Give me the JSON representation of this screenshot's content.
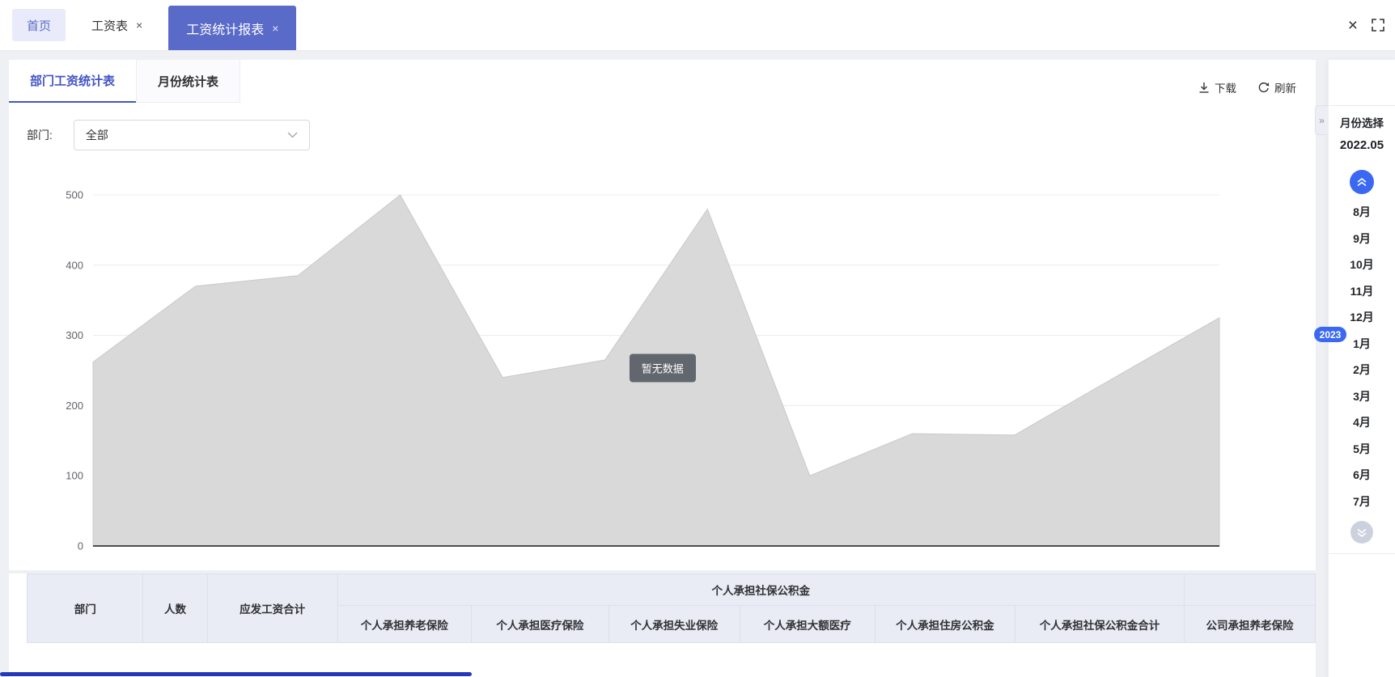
{
  "icons": {
    "close": "×",
    "collapse": "»"
  },
  "top_bar": {
    "tabs": [
      {
        "label": "首页"
      },
      {
        "label": "工资表"
      },
      {
        "label": "工资统计报表"
      }
    ]
  },
  "sub_tabs": [
    {
      "label": "部门工资统计表"
    },
    {
      "label": "月份统计表"
    }
  ],
  "toolbar": {
    "download": "下载",
    "refresh": "刷新"
  },
  "filter": {
    "label": "部门:",
    "value": "全部"
  },
  "chart_data": {
    "type": "area",
    "values": [
      262,
      370,
      385,
      500,
      240,
      265,
      480,
      100,
      160,
      158,
      242,
      325
    ],
    "x_labels": [],
    "ylim": [
      0,
      500
    ],
    "yticks": [
      0,
      100,
      200,
      300,
      400,
      500
    ],
    "title": "",
    "legend": [],
    "grid": true,
    "legend_position": "none",
    "fill_color": "#d9d9d9",
    "stroke_color": "#c9c9c9",
    "no_data_label": "暂无数据"
  },
  "table": {
    "col_dept": "部门",
    "col_count": "人数",
    "col_salary_total": "应发工资合计",
    "group_personal": "个人承担社保公积金",
    "personal_cols": [
      "个人承担养老保险",
      "个人承担医疗保险",
      "个人承担失业保险",
      "个人承担大额医疗",
      "个人承担住房公积金",
      "个人承担社保公积金合计"
    ],
    "col_company_partial": "公司承担养老保险"
  },
  "month_panel": {
    "title": "月份选择",
    "current": "2022.05",
    "year_badge": "2023",
    "months": [
      "8月",
      "9月",
      "10月",
      "11月",
      "12月",
      "1月",
      "2月",
      "3月",
      "4月",
      "5月",
      "6月",
      "7月"
    ]
  }
}
